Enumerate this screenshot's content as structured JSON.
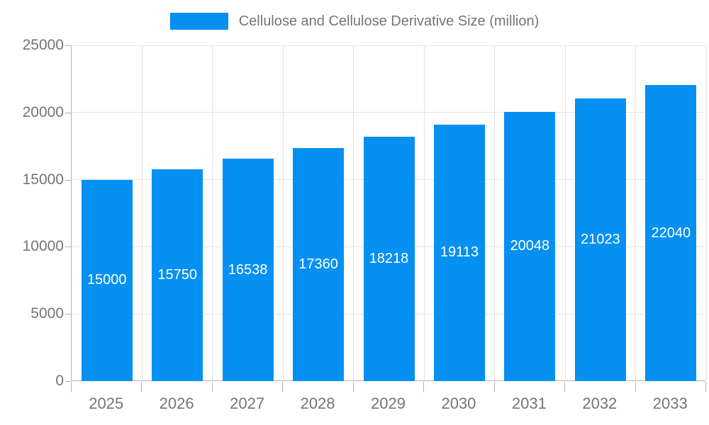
{
  "chart_data": {
    "type": "bar",
    "title": "Cellulose and Cellulose Derivative Size (million)",
    "series": [
      {
        "name": "Cellulose and Cellulose Derivative Size (million)",
        "values": [
          15000,
          15750,
          16538,
          17360,
          18218,
          19113,
          20048,
          21023,
          22040
        ]
      }
    ],
    "categories": [
      "2025",
      "2026",
      "2027",
      "2028",
      "2029",
      "2030",
      "2031",
      "2032",
      "2033"
    ],
    "xlabel": "",
    "ylabel": "",
    "ylim": [
      0,
      25000
    ],
    "yticks": [
      0,
      5000,
      10000,
      15000,
      20000,
      25000
    ],
    "ytick_labels": [
      "0",
      "5000",
      "10000",
      "15000",
      "20000",
      "25000"
    ],
    "grid": true,
    "legend_position": "top",
    "bar_labels_visible": true,
    "colors": {
      "bar": "#0590F2",
      "bar_label": "#FFFFFF",
      "axis_text": "#757575",
      "axis_line": "#B3B3B3",
      "gridline": "#E3E3E3",
      "background": "#FFFFFF"
    }
  }
}
